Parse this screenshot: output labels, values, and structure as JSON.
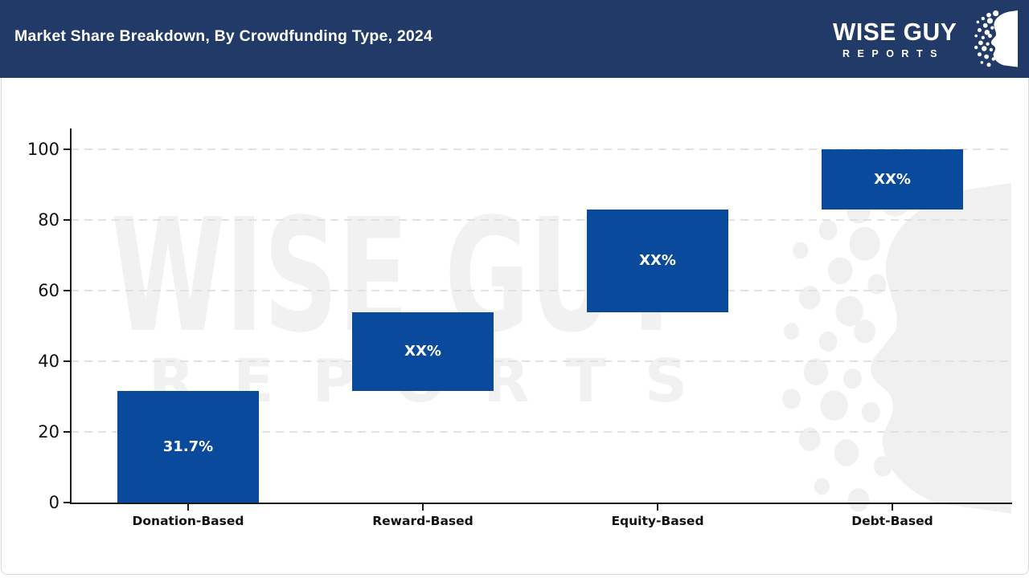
{
  "header": {
    "title": "Market Share Breakdown, By Crowdfunding Type, 2024",
    "bg_color": "#223a67",
    "logo": {
      "line1": "WISE GUY",
      "line2": "REPORTS"
    }
  },
  "watermark": {
    "line1": "WISE GUY",
    "line2": "REPORTS"
  },
  "chart_data": {
    "type": "bar",
    "subtype": "waterfall",
    "title": "Market Share Breakdown, By Crowdfunding Type, 2024",
    "categories": [
      "Donation-Based",
      "Reward-Based",
      "Equity-Based",
      "Debt-Based"
    ],
    "bars": [
      {
        "category": "Donation-Based",
        "start": 0,
        "end": 31.7,
        "label": "31.7%"
      },
      {
        "category": "Reward-Based",
        "start": 31.7,
        "end": 53.9,
        "label": "XX%"
      },
      {
        "category": "Equity-Based",
        "start": 53.9,
        "end": 83.0,
        "label": "XX%"
      },
      {
        "category": "Debt-Based",
        "start": 83.0,
        "end": 100.0,
        "label": "XX%"
      }
    ],
    "yticks": [
      0,
      20,
      40,
      60,
      80,
      100
    ],
    "ylim": [
      0,
      106
    ],
    "xlabel": "",
    "ylabel": "",
    "grid": "horizontal-dashed",
    "legend": "none",
    "bar_color": "#0a4a9c",
    "bar_label_color": "#ffffff",
    "axis_color": "#1a1a1a",
    "gridline_color": "#e2e2e2"
  }
}
